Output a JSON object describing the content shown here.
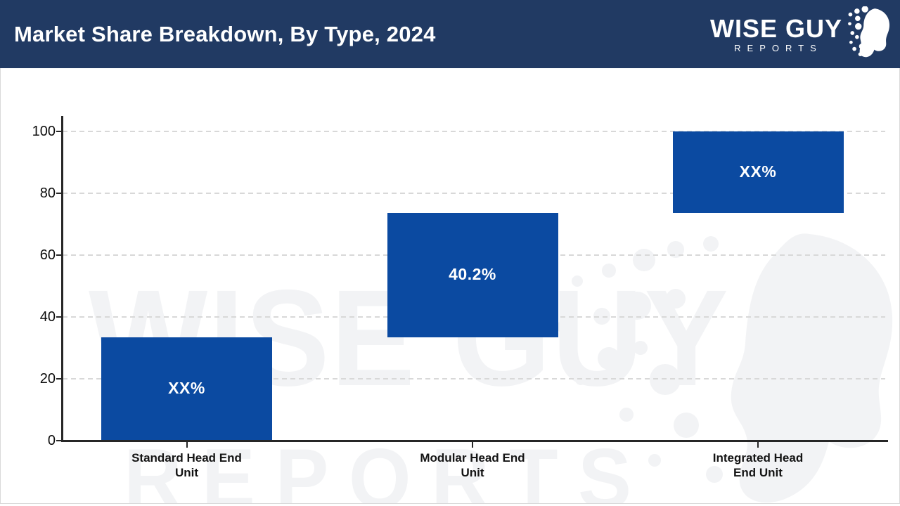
{
  "page": {
    "header_bg": "#213a63",
    "accent": "#0b4aa1",
    "background": "#ffffff"
  },
  "header": {
    "title": "Market Share Breakdown, By Type, 2024",
    "logo": {
      "brand_line1": "WISE GUY",
      "brand_line2": "REPORTS"
    }
  },
  "watermark": {
    "line1": "WISE GUY",
    "line2": "REPORTS"
  },
  "chart_data": {
    "type": "bar",
    "subtype": "waterfall-floating-bars",
    "title": "Market Share Breakdown, By Type, 2024",
    "categories": [
      "Standard Head End Unit",
      "Modular Head End Unit",
      "Integrated Head End Unit"
    ],
    "category_label_lines": [
      [
        "Standard Head End",
        "Unit"
      ],
      [
        "Modular Head End",
        "Unit"
      ],
      [
        "Integrated Head",
        "End Unit"
      ]
    ],
    "series": [
      {
        "name": "Market share by type (%)",
        "segments": [
          {
            "category": "Standard Head End Unit",
            "from": 0,
            "to": 33.5,
            "label": "XX%"
          },
          {
            "category": "Modular Head End Unit",
            "from": 33.5,
            "to": 73.7,
            "label": "40.2%"
          },
          {
            "category": "Integrated Head End Unit",
            "from": 73.7,
            "to": 100,
            "label": "XX%"
          }
        ]
      }
    ],
    "ylim": [
      0,
      100
    ],
    "yticks": [
      0,
      20,
      40,
      60,
      80,
      100
    ],
    "xlabel": "",
    "ylabel": "",
    "grid": "horizontal dashed",
    "legend": "none",
    "bar_color": "#0b4aa1",
    "bar_label_color": "#ffffff"
  }
}
